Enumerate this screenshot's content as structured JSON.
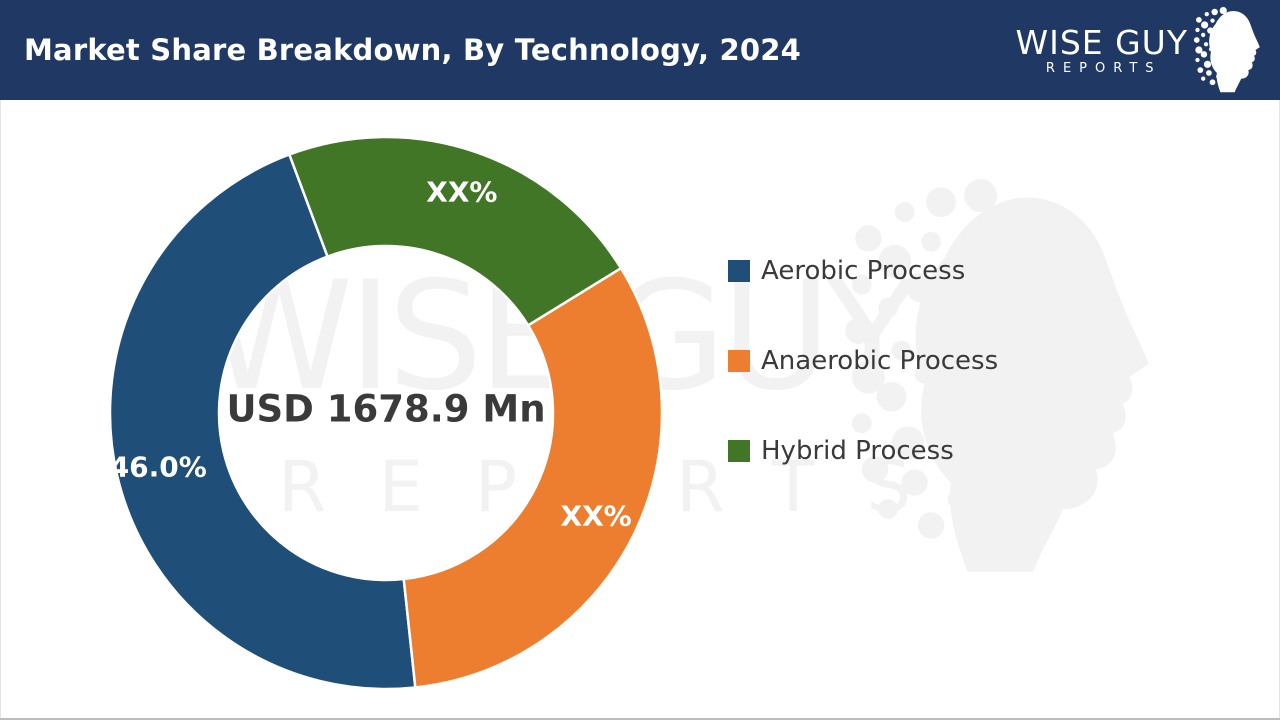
{
  "theme": {
    "header_bg": "#203864",
    "text_dark": "#3a3a3a",
    "watermark_color": "#f2f2f2",
    "slice_label_color": "#ffffff"
  },
  "header": {
    "title": "Market Share Breakdown, By Technology, 2024",
    "brand": {
      "name": "WISE GUY",
      "tagline": "REPORTS"
    }
  },
  "watermark": {
    "line1": "WISE GUY",
    "line2": "REPORTS"
  },
  "chart_data": {
    "type": "pie",
    "subtype": "donut",
    "title": "Market Share Breakdown, By Technology, 2024",
    "center_label": "USD 1678.9 Mn",
    "start_angle_deg": 110.5,
    "direction": "counterclockwise",
    "legend_position": "right",
    "series": [
      {
        "name": "Aerobic Process",
        "value_pct": 46.0,
        "label": "46.0%",
        "color": "#1f4e78"
      },
      {
        "name": "Anaerobic Process",
        "value_pct": 32.1,
        "label": "XX%",
        "color": "#ed7d2f"
      },
      {
        "name": "Hybrid Process",
        "value_pct": 21.9,
        "label": "XX%",
        "color": "#427627"
      }
    ]
  }
}
